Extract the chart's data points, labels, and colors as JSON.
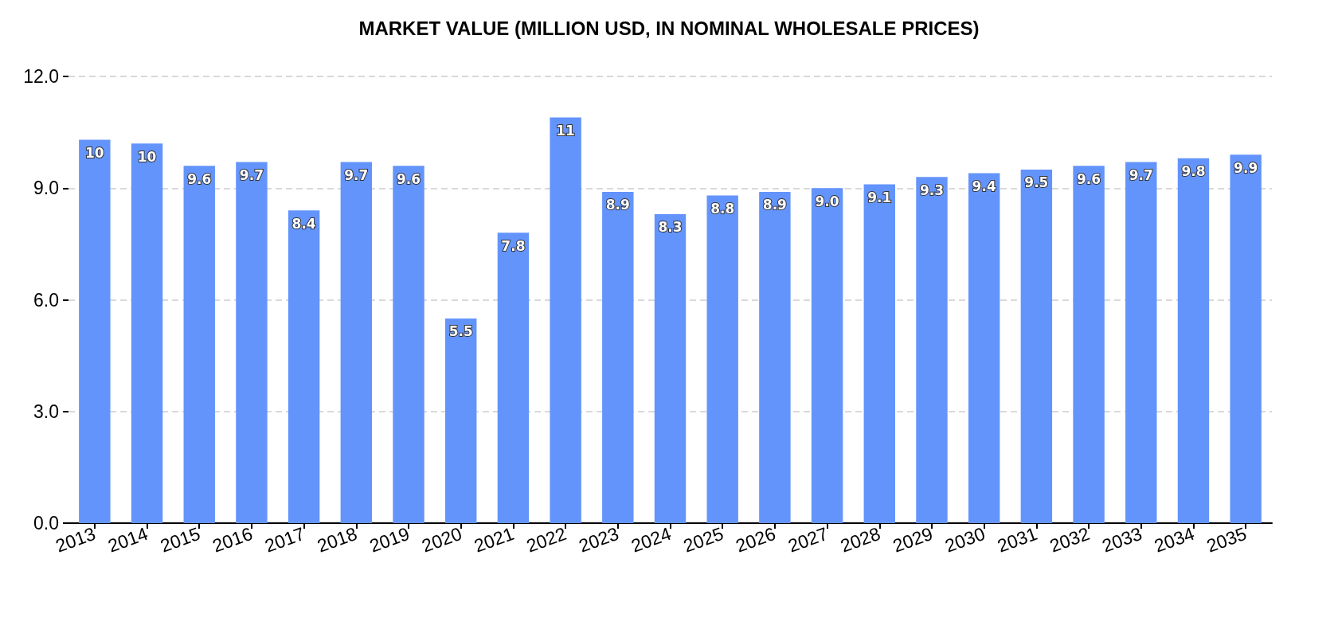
{
  "chart_data": {
    "type": "bar",
    "title": "MARKET VALUE (MILLION USD, IN NOMINAL WHOLESALE PRICES)",
    "categories": [
      "2013",
      "2014",
      "2015",
      "2016",
      "2017",
      "2018",
      "2019",
      "2020",
      "2021",
      "2022",
      "2023",
      "2024",
      "2025",
      "2026",
      "2027",
      "2028",
      "2029",
      "2030",
      "2031",
      "2032",
      "2033",
      "2034",
      "2035"
    ],
    "values": [
      10.3,
      10.2,
      9.6,
      9.7,
      8.4,
      9.7,
      9.6,
      5.5,
      7.8,
      10.9,
      8.9,
      8.3,
      8.8,
      8.9,
      9.0,
      9.1,
      9.3,
      9.4,
      9.5,
      9.6,
      9.7,
      9.8,
      9.9
    ],
    "value_labels": [
      "10",
      "10",
      "9.6",
      "9.7",
      "8.4",
      "9.7",
      "9.6",
      "5.5",
      "7.8",
      "11",
      "8.9",
      "8.3",
      "8.8",
      "8.9",
      "9.0",
      "9.1",
      "9.3",
      "9.4",
      "9.5",
      "9.6",
      "9.7",
      "9.8",
      "9.9"
    ],
    "color": "#6394fc",
    "ylim": [
      0,
      12
    ],
    "yticks": [
      {
        "value": 0,
        "label": "0.0"
      },
      {
        "value": 3,
        "label": "3.0"
      },
      {
        "value": 6,
        "label": "6.0"
      },
      {
        "value": 9,
        "label": "9.0"
      },
      {
        "value": 12,
        "label": "12.0"
      }
    ],
    "grid": "y"
  }
}
